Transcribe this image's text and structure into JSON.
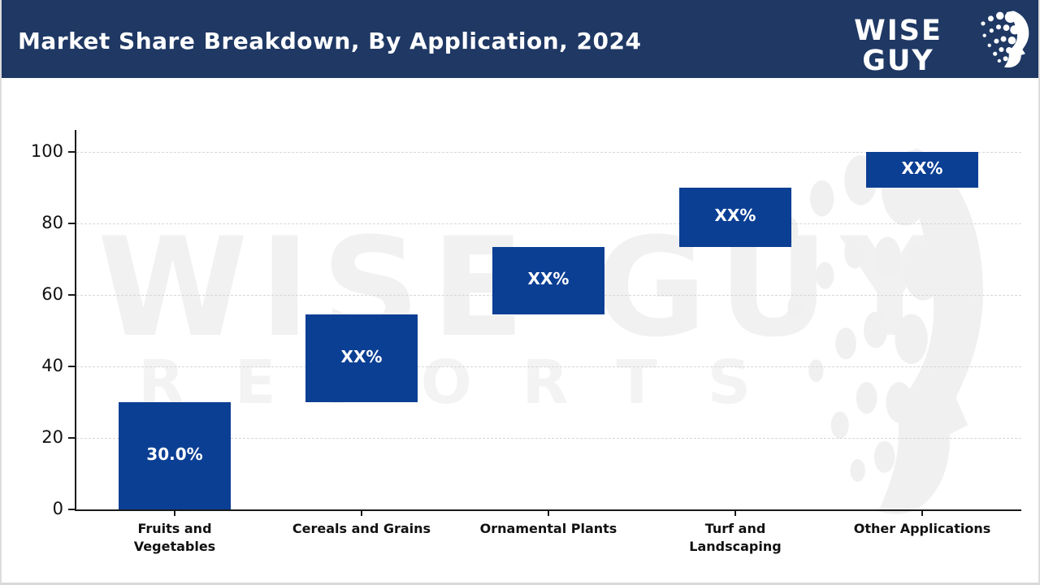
{
  "header": {
    "title": "Market Share Breakdown, By Application, 2024",
    "bg_color": "#1f3864",
    "logo": {
      "line1": "WISE GUY",
      "line2": "REPORTS"
    }
  },
  "watermark": {
    "line1": "WISE GUY",
    "line2": "REPORTS"
  },
  "chart_data": {
    "type": "bar",
    "subtype": "waterfall",
    "title": "Market Share Breakdown, By Application, 2024",
    "categories": [
      "Fruits and\nVegetables",
      "Cereals and Grains",
      "Ornamental Plants",
      "Turf and\nLandscaping",
      "Other Applications"
    ],
    "series": [
      {
        "starts": [
          0,
          30,
          54.5,
          73.5,
          90
        ],
        "ends": [
          30,
          54.5,
          73.5,
          90,
          100
        ],
        "values": [
          30,
          24.5,
          19,
          16.5,
          10
        ]
      }
    ],
    "bar_labels": [
      "30.0%",
      "XX%",
      "XX%",
      "XX%",
      "XX%"
    ],
    "yticks": [
      0,
      20,
      40,
      60,
      80,
      100
    ],
    "ylim": [
      0,
      106
    ],
    "xlabel": "",
    "ylabel": "",
    "grid": "dashed-horizontal",
    "legend": "none",
    "bar_color": "#0b3f94",
    "bar_label_color": "#ffffff",
    "axis_color": "#1a1a1a"
  }
}
